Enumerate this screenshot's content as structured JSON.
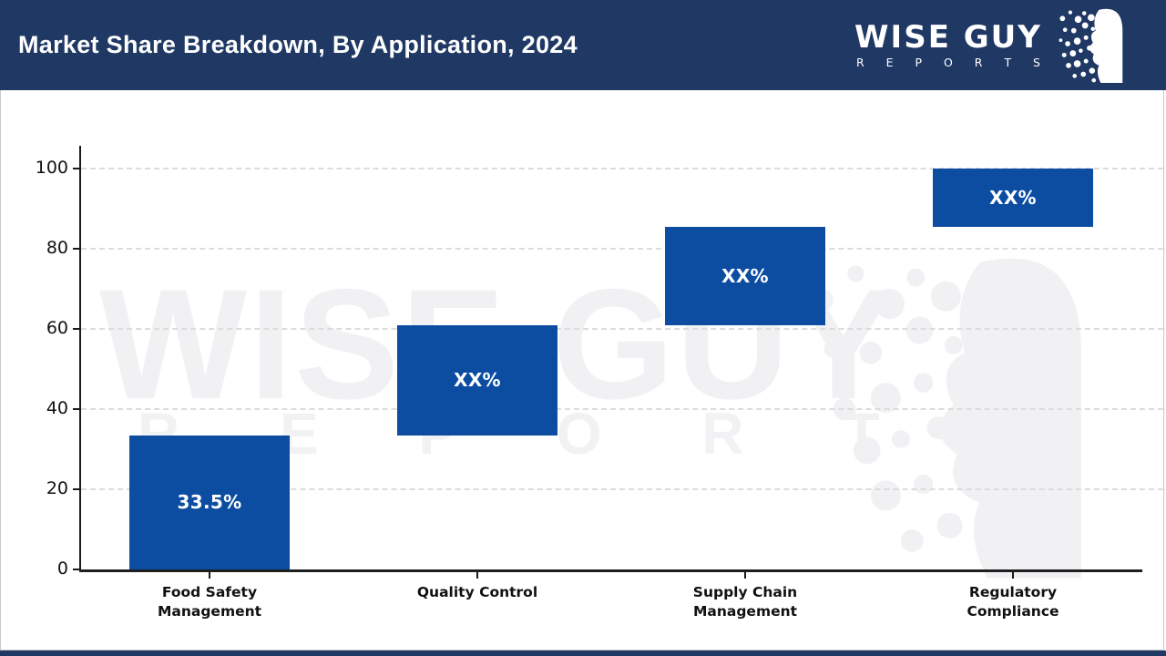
{
  "header": {
    "title": "Market Share Breakdown, By Application, 2024",
    "bg_color": "#1F3864",
    "logo": {
      "line1": "WISE GUY",
      "line2": "R E P O R T S"
    }
  },
  "watermark": {
    "line1": "WISE GUY",
    "line2": "R E P O R T S"
  },
  "chart_data": {
    "type": "bar",
    "variant": "waterfall",
    "title": "Market Share Breakdown, By Application, 2024",
    "categories": [
      "Food Safety\nManagement",
      "Quality Control",
      "Supply Chain\nManagement",
      "Regulatory\nCompliance"
    ],
    "segments": [
      {
        "category": "Food Safety Management",
        "start": 0,
        "end": 33.5,
        "label": "33.5%"
      },
      {
        "category": "Quality Control",
        "start": 33.5,
        "end": 61,
        "label": "XX%"
      },
      {
        "category": "Supply Chain Management",
        "start": 61,
        "end": 85.5,
        "label": "XX%"
      },
      {
        "category": "Regulatory Compliance",
        "start": 85.5,
        "end": 100,
        "label": "XX%"
      }
    ],
    "ylim": [
      0,
      100
    ],
    "yticks": [
      0,
      20,
      40,
      60,
      80,
      100
    ],
    "xlabel": "",
    "ylabel": "",
    "grid": "horizontal-dashed",
    "legend": "none",
    "bar_color": "#0C4DA2",
    "bar_label_color": "#ffffff",
    "axis_color": "#1a1a1a"
  }
}
